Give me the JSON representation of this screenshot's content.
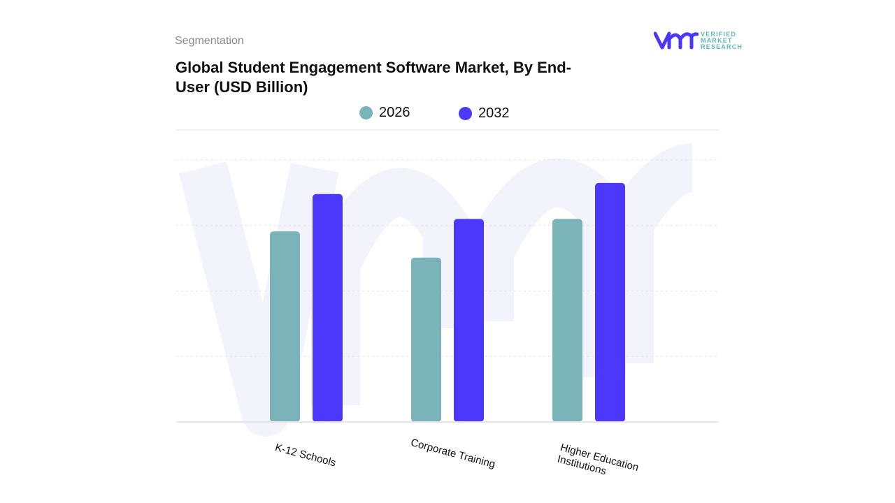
{
  "header": {
    "segment_label": "Segmentation",
    "title": "Global Student Engagement Software Market, By End-User (USD Billion)"
  },
  "logo": {
    "text_lines": [
      "VERIFIED",
      "MARKET",
      "RESEARCH"
    ]
  },
  "chart_data": {
    "type": "bar",
    "title": "Global Student Engagement Software Market, By End-User (USD Billion)",
    "categories": [
      "K-12 Schools",
      "Corporate Training",
      "Higher Education Institutions"
    ],
    "series": [
      {
        "name": "2026",
        "color": "#7ab3b8",
        "values": [
          2.91,
          2.51,
          3.1
        ]
      },
      {
        "name": "2032",
        "color": "#4b38fb",
        "values": [
          3.48,
          3.1,
          3.65
        ]
      }
    ],
    "ylim": [
      0,
      4
    ],
    "grid": true,
    "legend": "top-center",
    "xlabel": "",
    "ylabel": ""
  }
}
